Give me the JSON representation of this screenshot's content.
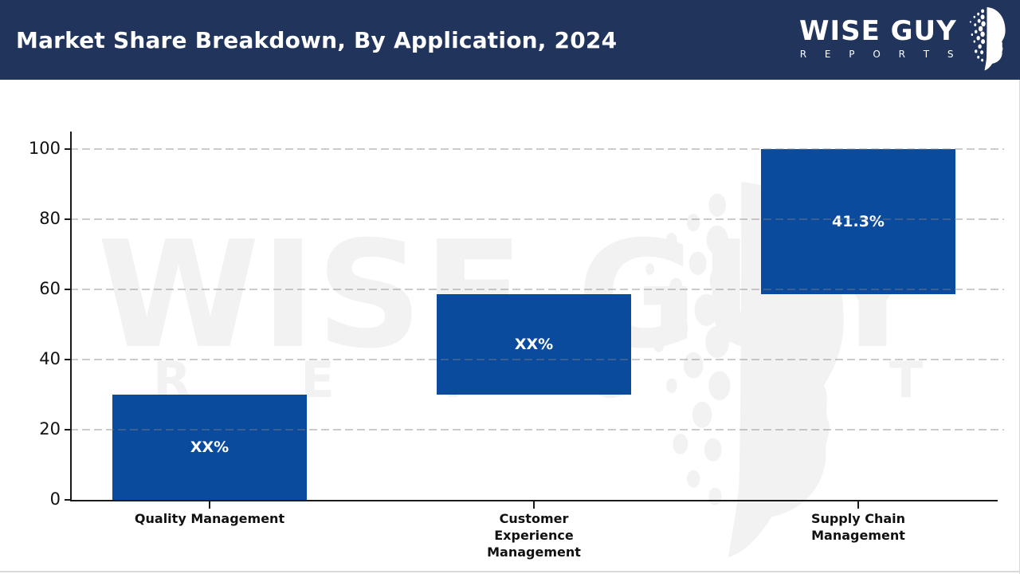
{
  "header": {
    "title": "Market Share Breakdown, By Application, 2024",
    "logo": {
      "line1": "WISE GUY",
      "line2": "R E P O R T S"
    }
  },
  "watermark": {
    "line1": "WISE GUY",
    "line2": "R E P O R T S"
  },
  "colors": {
    "header_bg": "#21345c",
    "bar": "#0b4b9e",
    "axis": "#1a1a1a",
    "grid": "rgba(128,128,128,0.4)",
    "watermark": "#f2f2f2"
  },
  "chart_data": {
    "type": "bar",
    "subtype": "floating-stacked-breakdown",
    "title": "Market Share Breakdown, By Application, 2024",
    "categories": [
      "Quality Management",
      "Customer Experience Management",
      "Supply Chain Management"
    ],
    "category_label_lines": [
      [
        "Quality Management"
      ],
      [
        "Customer",
        "Experience",
        "Management"
      ],
      [
        "Supply Chain",
        "Management"
      ]
    ],
    "segments": [
      {
        "category": "Quality Management",
        "start": 0,
        "end": 30,
        "value": 30,
        "label": "XX%"
      },
      {
        "category": "Customer Experience Management",
        "start": 30,
        "end": 58.7,
        "value": 28.7,
        "label": "XX%"
      },
      {
        "category": "Supply Chain Management",
        "start": 58.7,
        "end": 100,
        "value": 41.3,
        "label": "41.3%"
      }
    ],
    "ylim": [
      0,
      100
    ],
    "yticks": [
      0,
      20,
      40,
      60,
      80,
      100
    ],
    "grid": "horizontal-dashed-over-bars",
    "legend": "none",
    "bar_color": "#0b4b9e"
  }
}
